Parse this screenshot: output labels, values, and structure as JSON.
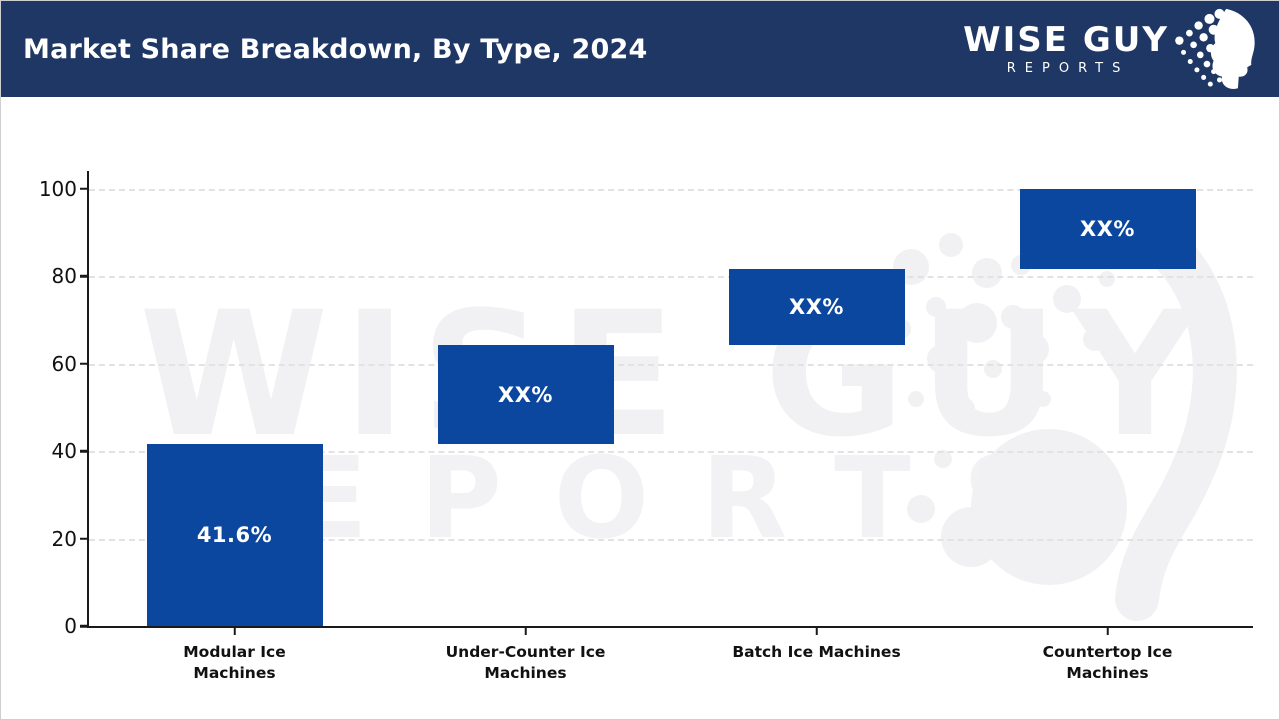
{
  "header": {
    "title": "Market Share Breakdown, By Type, 2024",
    "logo_line1": "WISE GUY",
    "logo_line2": "REPORTS"
  },
  "watermark": {
    "line1": "WISE GUY",
    "line2": "REPORTS"
  },
  "colors": {
    "header_bg": "#1F3764",
    "bar": "#0B469F",
    "axis": "#1a1a1a",
    "grid": "#e2e2e2",
    "watermark": "#f1f1f3"
  },
  "chart_data": {
    "type": "bar",
    "variant": "waterfall",
    "title": "Market Share Breakdown, By Type, 2024",
    "categories": [
      "Modular Ice Machines",
      "Under-Counter Ice Machines",
      "Batch Ice Machines",
      "Countertop Ice Machines"
    ],
    "segments": [
      {
        "category": "Modular Ice Machines",
        "start": 0,
        "end": 41.6,
        "label": "41.6%"
      },
      {
        "category": "Under-Counter Ice Machines",
        "start": 41.6,
        "end": 64.2,
        "label": "XX%"
      },
      {
        "category": "Batch Ice Machines",
        "start": 64.2,
        "end": 81.5,
        "label": "XX%"
      },
      {
        "category": "Countertop Ice Machines",
        "start": 81.5,
        "end": 100,
        "label": "XX%"
      }
    ],
    "yticks": [
      0,
      20,
      40,
      60,
      80,
      100
    ],
    "ylim": [
      0,
      104
    ],
    "grid": true,
    "legend": false,
    "xlabel": "",
    "ylabel": ""
  }
}
